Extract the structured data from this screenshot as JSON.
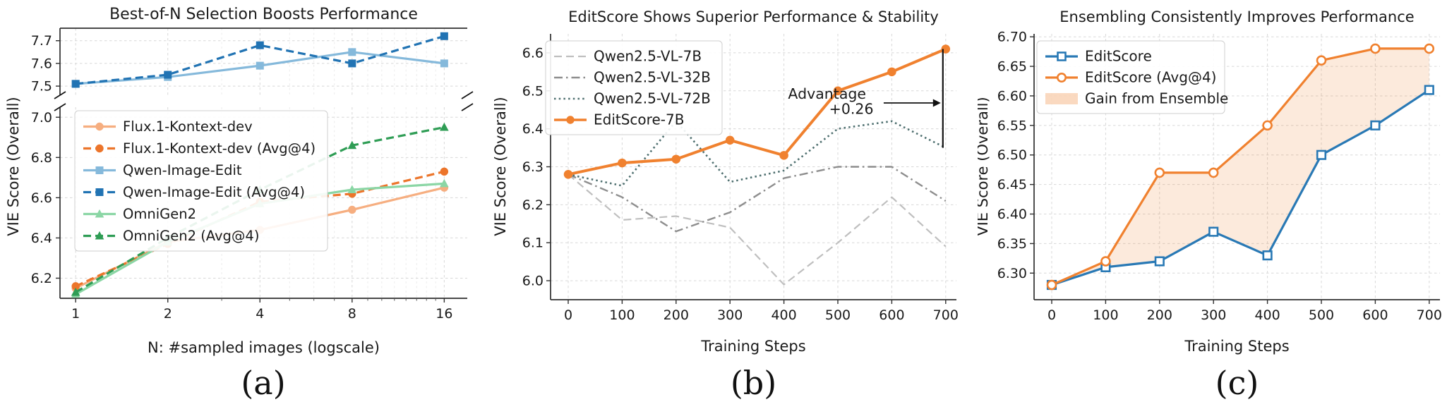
{
  "figure": {
    "background": "#ffffff",
    "captions": {
      "a": "(a)",
      "b": "(b)",
      "c": "(c)"
    }
  },
  "chart_data": [
    {
      "id": "a",
      "type": "line",
      "title": "Best-of-N Selection Boosts Performance",
      "xlabel": "N: #sampled images (logscale)",
      "ylabel": "VIE Score (Overall)",
      "x_scale": "log2",
      "x": [
        1,
        2,
        4,
        8,
        16
      ],
      "xtick_labels": [
        "1",
        "2",
        "4",
        "8",
        "16"
      ],
      "broken_axis": true,
      "grid": true,
      "legend_position": "upper-left of lower panel",
      "panels": [
        {
          "ylim": [
            7.46,
            7.755
          ],
          "yticks": [
            7.5,
            7.6,
            7.7
          ],
          "ytick_labels": [
            "7.5",
            "7.6",
            "7.7"
          ],
          "series_ids": [
            "qwen_image_edit",
            "qwen_image_edit_avg4"
          ]
        },
        {
          "ylim": [
            6.1,
            7.05
          ],
          "yticks": [
            6.2,
            6.4,
            6.6,
            6.8,
            7.0
          ],
          "ytick_labels": [
            "6.2",
            "6.4",
            "6.6",
            "6.8",
            "7.0"
          ],
          "series_ids": [
            "flux",
            "flux_avg4",
            "omnigen2",
            "omnigen2_avg4"
          ]
        }
      ],
      "series": [
        {
          "id": "flux",
          "name": "Flux.1-Kontext-dev",
          "color": "#F6AE80",
          "style": "solid",
          "marker": "circle",
          "values": [
            6.15,
            6.38,
            6.44,
            6.54,
            6.65
          ]
        },
        {
          "id": "flux_avg4",
          "name": "Flux.1-Kontext-dev (Avg@4)",
          "color": "#EC752B",
          "style": "dashed",
          "marker": "circle",
          "values": [
            6.16,
            6.37,
            6.58,
            6.62,
            6.73
          ]
        },
        {
          "id": "qwen_image_edit",
          "name": "Qwen-Image-Edit",
          "color": "#85B9DB",
          "style": "solid",
          "marker": "square",
          "values": [
            7.51,
            7.54,
            7.59,
            7.65,
            7.6
          ]
        },
        {
          "id": "qwen_image_edit_avg4",
          "name": "Qwen-Image-Edit (Avg@4)",
          "color": "#2173B3",
          "style": "dashed",
          "marker": "square",
          "values": [
            7.51,
            7.55,
            7.68,
            7.6,
            7.72
          ]
        },
        {
          "id": "omnigen2",
          "name": "OmniGen2",
          "color": "#8BD6A5",
          "style": "solid",
          "marker": "triangle",
          "values": [
            6.12,
            6.38,
            6.57,
            6.64,
            6.67
          ]
        },
        {
          "id": "omnigen2_avg4",
          "name": "OmniGen2 (Avg@4)",
          "color": "#2F9D55",
          "style": "dashed",
          "marker": "triangle",
          "values": [
            6.13,
            6.4,
            6.64,
            6.86,
            6.95
          ]
        }
      ]
    },
    {
      "id": "b",
      "type": "line",
      "title": "EditScore Shows Superior Performance & Stability",
      "xlabel": "Training Steps",
      "ylabel": "VIE Score (Overall)",
      "x": [
        0,
        100,
        200,
        300,
        400,
        500,
        600,
        700
      ],
      "xtick_labels": [
        "0",
        "100",
        "200",
        "300",
        "400",
        "500",
        "600",
        "700"
      ],
      "ylim": [
        5.95,
        6.65
      ],
      "yticks": [
        6.0,
        6.1,
        6.2,
        6.3,
        6.4,
        6.5,
        6.6
      ],
      "ytick_labels": [
        "6.0",
        "6.1",
        "6.2",
        "6.3",
        "6.4",
        "6.5",
        "6.6"
      ],
      "grid": true,
      "legend_position": "upper-left",
      "series": [
        {
          "id": "qwen25vl7b",
          "name": "Qwen2.5-VL-7B",
          "color": "#BFBFBF",
          "style": "dashed",
          "marker": null,
          "lw": 2.2,
          "values": [
            6.28,
            6.16,
            6.17,
            6.14,
            5.99,
            6.1,
            6.22,
            6.09
          ]
        },
        {
          "id": "qwen25vl32b",
          "name": "Qwen2.5-VL-32B",
          "color": "#8E8E8E",
          "style": "dashdot",
          "marker": null,
          "lw": 2.4,
          "values": [
            6.28,
            6.22,
            6.13,
            6.18,
            6.27,
            6.3,
            6.3,
            6.21
          ]
        },
        {
          "id": "qwen25vl72b",
          "name": "Qwen2.5-VL-72B",
          "color": "#4E6F6F",
          "style": "dotted",
          "marker": null,
          "lw": 2.6,
          "values": [
            6.28,
            6.25,
            6.42,
            6.26,
            6.29,
            6.4,
            6.42,
            6.35
          ]
        },
        {
          "id": "editscore7b",
          "name": "EditScore-7B",
          "color": "#F0812F",
          "style": "solid",
          "marker": "circle",
          "lw": 4,
          "values": [
            6.28,
            6.31,
            6.32,
            6.37,
            6.33,
            6.5,
            6.55,
            6.61
          ]
        }
      ],
      "annotation": {
        "text_lines": [
          "Advantage",
          "+0.26"
        ],
        "arrow": "right",
        "line_x": 700,
        "y_from": 6.35,
        "y_to": 6.61
      }
    },
    {
      "id": "c",
      "type": "line",
      "title": "Ensembling Consistently Improves Performance",
      "xlabel": "Training Steps",
      "ylabel": "VIE Score (Overall)",
      "x": [
        0,
        100,
        200,
        300,
        400,
        500,
        600,
        700
      ],
      "xtick_labels": [
        "0",
        "100",
        "200",
        "300",
        "400",
        "500",
        "600",
        "700"
      ],
      "ylim": [
        6.255,
        6.705
      ],
      "yticks": [
        6.3,
        6.35,
        6.4,
        6.45,
        6.5,
        6.55,
        6.6,
        6.65,
        6.7
      ],
      "ytick_labels": [
        "6.30",
        "6.35",
        "6.40",
        "6.45",
        "6.50",
        "6.55",
        "6.60",
        "6.65",
        "6.70"
      ],
      "grid": true,
      "legend_position": "upper-left",
      "series": [
        {
          "id": "editscore",
          "name": "EditScore",
          "color": "#2979B5",
          "style": "solid",
          "marker": "square",
          "open_marker": true,
          "lw": 3.2,
          "values": [
            6.28,
            6.31,
            6.32,
            6.37,
            6.33,
            6.5,
            6.55,
            6.61
          ]
        },
        {
          "id": "editscore_avg4",
          "name": "EditScore (Avg@4)",
          "color": "#F0812F",
          "style": "solid",
          "marker": "circle",
          "open_marker": true,
          "lw": 3.2,
          "values": [
            6.28,
            6.32,
            6.47,
            6.47,
            6.55,
            6.66,
            6.68,
            6.68
          ]
        }
      ],
      "fill_between": {
        "upper": "editscore_avg4",
        "lower": "editscore",
        "label": "Gain from Ensemble",
        "color": "#F0812F",
        "opacity": 0.17
      }
    }
  ]
}
